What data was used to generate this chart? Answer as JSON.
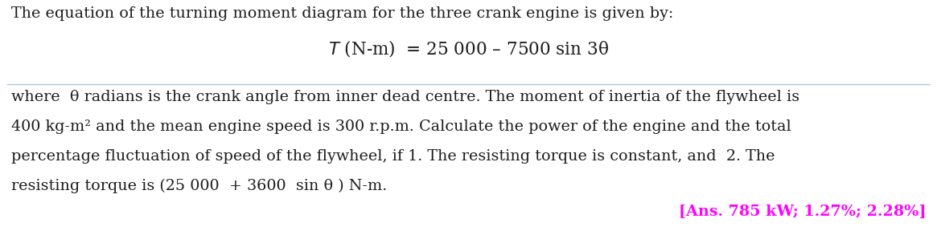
{
  "bg_color": "#ffffff",
  "line1": "The equation of the turning moment diagram for the three crank engine is given by:",
  "equation": "$\\mathit{T}$ (N-m)  = 25 000 – 7500 sin 3θ",
  "body_lines": [
    "where  θ radians is the crank angle from inner dead centre. The moment of inertia of the flywheel is",
    "400 kg-m² and the mean engine speed is 300 r.p.m. Calculate the power of the engine and the total",
    "percentage fluctuation of speed of the flywheel, if 1. The resisting torque is constant, and  2. The",
    "resisting torque is (25 000  + 3600  sin θ ) N-m."
  ],
  "answer": "[Ans. 785 kW; 1.27%; 2.28%]",
  "answer_color": "#ff00ff",
  "text_color": "#1c1c1c",
  "main_fontsize": 13.8,
  "eq_fontsize": 15.5,
  "ans_fontsize": 13.8,
  "sep_color": "#b0c8d8",
  "sep_linewidth": 1.0
}
